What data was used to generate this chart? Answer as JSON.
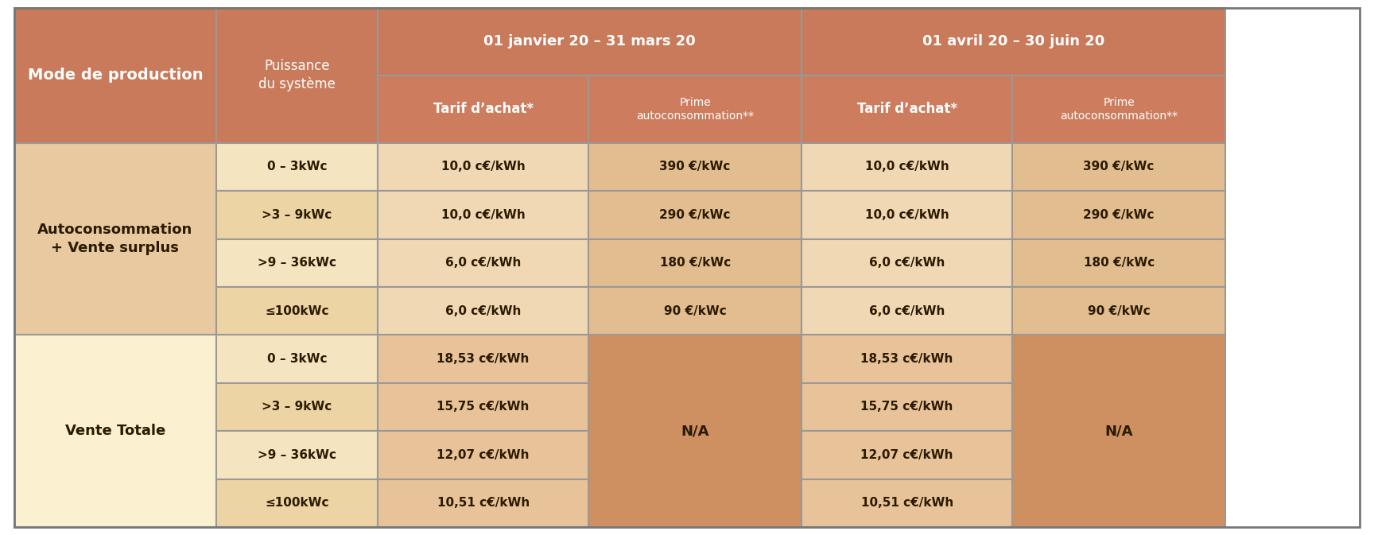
{
  "header_bg": "#C87A5A",
  "subheader_bg": "#C87A5A",
  "mode_prod_bg": "#C87A5A",
  "puissance_bg": "#C87A5A",
  "auto_section_bg": "#E8C9A0",
  "vente_section_bg": "#FBF0D0",
  "auto_row_bg": [
    "#F5E6C8",
    "#EDD5A8",
    "#F5E6C8",
    "#EDD5A8"
  ],
  "vente_row_bg": [
    "#F5E6C8",
    "#EDD5A8",
    "#F5E6C8",
    "#EDD5A8"
  ],
  "tarif_auto_bg": "#F0D8B0",
  "prime_auto_bg": "#E0B888",
  "tarif_vente_bg": "#E8C090",
  "prime_vente_bg": "#D4956A",
  "border_color": "#999999",
  "header_border": "#888888",
  "text_dark": "#2A1A00",
  "text_white": "#FFFFFF",
  "col0_label": "Mode de production",
  "col1_label": "Puissance\ndu système",
  "period1_label": "01 janvier 20 – 31 mars 20",
  "period2_label": "01 avril 20 – 30 juin 20",
  "tarif_label": "Tarif d’achat*",
  "prime_label": "Prime\nautoconsommation**",
  "auto_section_label": "Autoconsommation\n+ Vente surplus",
  "vente_section_label": "Vente Totale",
  "power_ranges": [
    "0 – 3kWc",
    ">3 – 9kWc",
    ">9 – 36kWc",
    "≤100kWc"
  ],
  "auto_data": [
    [
      "10,0 c€/kWh",
      "390 €/kWc",
      "10,0 c€/kWh",
      "390 €/kWc"
    ],
    [
      "10,0 c€/kWh",
      "290 €/kWc",
      "10,0 c€/kWh",
      "290 €/kWc"
    ],
    [
      "6,0 c€/kWh",
      "180 €/kWc",
      "6,0 c€/kWh",
      "180 €/kWc"
    ],
    [
      "6,0 c€/kWh",
      "90 €/kWc",
      "6,0 c€/kWh",
      "90 €/kWc"
    ]
  ],
  "vente_data": [
    [
      "18,53 c€/kWh",
      "15,75 c€/kWh",
      "12,07 c€/kWh",
      "10,51 c€/kWh"
    ],
    [
      "18,53 c€/kWh",
      "15,75 c€/kWh",
      "12,07 c€/kWh",
      "10,51 c€/kWh"
    ]
  ],
  "figsize": [
    17.28,
    6.73
  ],
  "dpi": 100
}
